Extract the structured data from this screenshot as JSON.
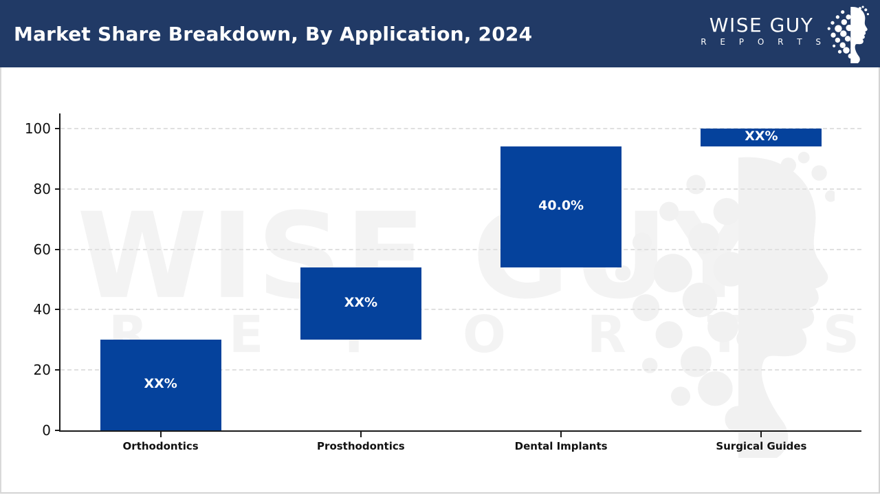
{
  "header": {
    "title": "Market Share Breakdown, By Application, 2024",
    "logo": {
      "line1": "WISE GUY",
      "line2": "R E P O R T S"
    }
  },
  "watermark": {
    "line1": "WISE GUY",
    "line2": "R E P O R T S"
  },
  "chart_data": {
    "type": "bar",
    "subtype": "floating-waterfall",
    "title": "Market Share Breakdown, By Application, 2024",
    "categories": [
      "Orthodontics",
      "Prosthodontics",
      "Dental Implants",
      "Surgical Guides"
    ],
    "series": [
      {
        "name": "Market Share %",
        "segments": [
          {
            "category": "Orthodontics",
            "from": 0,
            "to": 30,
            "label": "XX%"
          },
          {
            "category": "Prosthodontics",
            "from": 30,
            "to": 54,
            "label": "XX%"
          },
          {
            "category": "Dental Implants",
            "from": 54,
            "to": 94,
            "label": "40.0%"
          },
          {
            "category": "Surgical Guides",
            "from": 94,
            "to": 100,
            "label": "XX%"
          }
        ]
      }
    ],
    "ylim": [
      0,
      100
    ],
    "yticks": [
      0,
      20,
      40,
      60,
      80,
      100
    ],
    "xlabel": "",
    "ylabel": "",
    "grid": "horizontal-dashed",
    "legend": "none",
    "bar_color": "#05429C",
    "label_color": "#ffffff"
  },
  "colors": {
    "header_bg": "#213A66",
    "bar": "#05429C",
    "grid": "#e0e0e0",
    "axis": "#1a1a1a",
    "watermark": "#f2f2f2",
    "frame": "#d5d5d5"
  }
}
